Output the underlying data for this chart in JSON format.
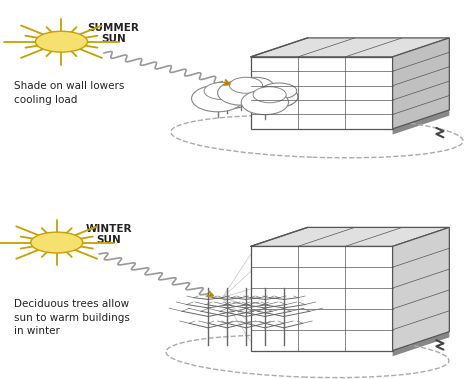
{
  "background_color": "#ffffff",
  "summer_sun_label": "SUMMER\nSUN",
  "winter_sun_label": "WINTER\nSUN",
  "summer_caption": "Shade on wall lowers\ncooling load",
  "winter_caption": "Deciduous trees allow\nsun to warm buildings\nin winter",
  "sun_color_outer": "#C8A000",
  "sun_color_inner": "#F5E070",
  "wave_color": "#999999",
  "arrow_color": "#B8860B",
  "building_edge_color": "#555555",
  "building_face_color": "#c8c8c8",
  "ellipse_color": "#999999",
  "text_color": "#222222"
}
